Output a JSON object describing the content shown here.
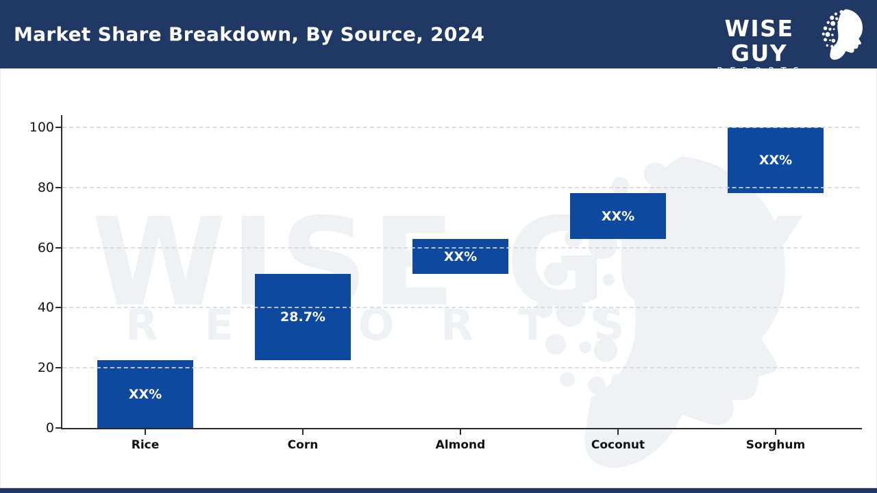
{
  "header": {
    "title": "Market Share Breakdown, By Source, 2024",
    "logo": {
      "line1": "WISE GUY",
      "line2": "REPORTS"
    }
  },
  "watermark": {
    "line1": "WISE GUY",
    "line2": "REPORTS"
  },
  "footer": {
    "bar_color": "#1f3864"
  },
  "colors": {
    "header_bg": "#1f3864",
    "bar_fill": "#0d4a9f",
    "bar_label": "#ffffff",
    "watermark": "#f0f1f3",
    "gridline": "#d7d7d7",
    "axis": "#2b2b2b"
  },
  "chart_data": {
    "type": "bar",
    "variant": "waterfall",
    "title": "Market Share Breakdown, By Source, 2024",
    "xlabel": "",
    "ylabel": "",
    "ylim": [
      0,
      100
    ],
    "yticks": [
      0,
      20,
      40,
      60,
      80,
      100
    ],
    "grid": "horizontal-dashed",
    "legend": "none",
    "categories": [
      "Rice",
      "Corn",
      "Almond",
      "Coconut",
      "Sorghum"
    ],
    "bars": [
      {
        "category": "Rice",
        "start": 0,
        "end": 22.5,
        "label": "XX%"
      },
      {
        "category": "Corn",
        "start": 22.5,
        "end": 51.2,
        "label": "28.7%"
      },
      {
        "category": "Almond",
        "start": 51.2,
        "end": 62.8,
        "label": "XX%"
      },
      {
        "category": "Coconut",
        "start": 62.8,
        "end": 78.2,
        "label": "XX%"
      },
      {
        "category": "Sorghum",
        "start": 78.2,
        "end": 100,
        "label": "XX%"
      }
    ]
  }
}
